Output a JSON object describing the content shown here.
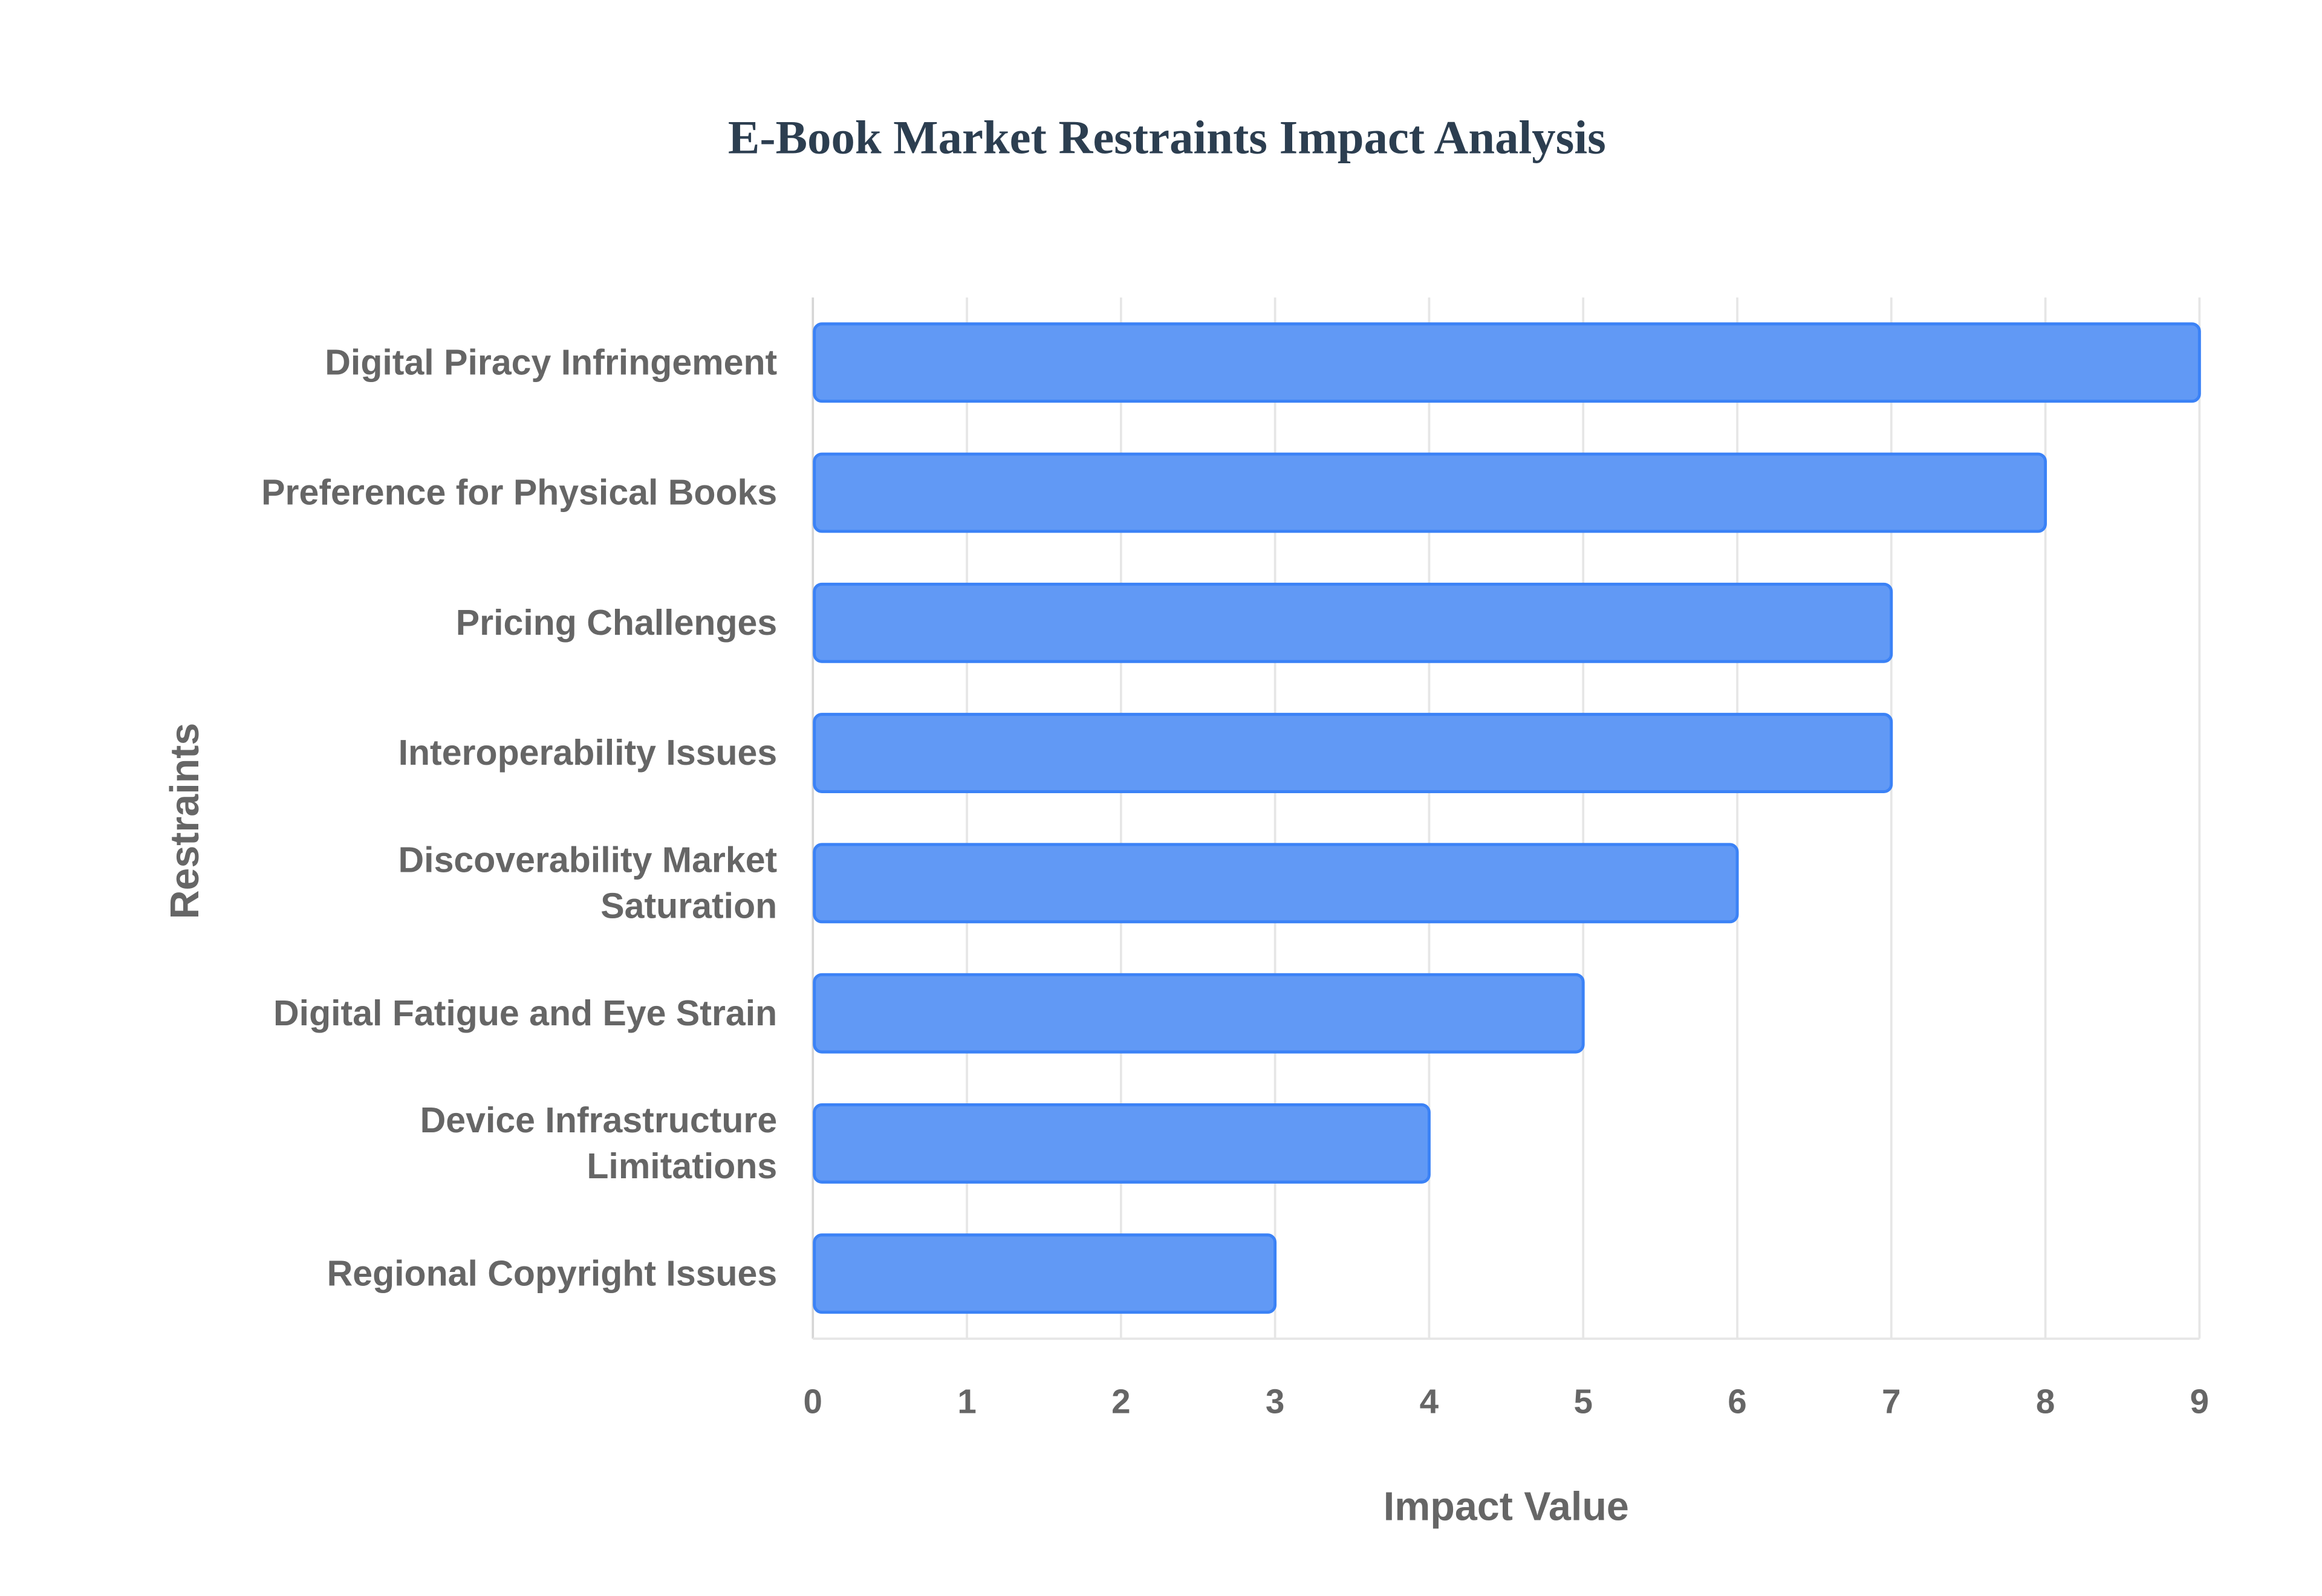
{
  "chart_data": {
    "type": "bar",
    "orientation": "horizontal",
    "title": "E-Book Market Restraints Impact Analysis",
    "xlabel": "Impact Value",
    "ylabel": "Restraints",
    "categories": [
      [
        "Digital Piracy Infringement"
      ],
      [
        "Preference for Physical Books"
      ],
      [
        "Pricing Challenges"
      ],
      [
        "Interoperability Issues"
      ],
      [
        "Discoverability Market",
        "Saturation"
      ],
      [
        "Digital Fatigue and Eye Strain"
      ],
      [
        "Device Infrastructure",
        "Limitations"
      ],
      [
        "Regional Copyright Issues"
      ]
    ],
    "values": [
      9,
      8,
      7,
      7,
      6,
      5,
      4,
      3
    ],
    "xlim": [
      0,
      9
    ],
    "xticks": [
      "0",
      "1",
      "2",
      "3",
      "4",
      "5",
      "6",
      "7",
      "8",
      "9"
    ],
    "grid": true,
    "legend": "none",
    "colors": {
      "bar_fill": "#6199f5",
      "bar_border": "#3b82f6",
      "grid": "#e6e6e6",
      "title": "#2c3e50",
      "text": "#666666"
    }
  }
}
